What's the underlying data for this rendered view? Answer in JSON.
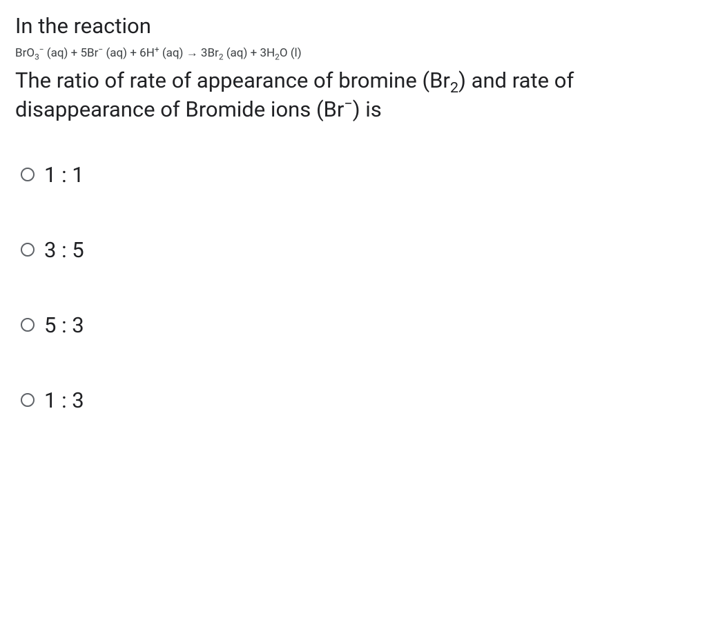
{
  "question": {
    "intro": "In the reaction",
    "equation_parts": {
      "p1": "BrO",
      "p2": "3",
      "p3": "−",
      "p4": " (aq) + 5Br",
      "p5": "−",
      "p6": " (aq) + 6H",
      "p7": "+",
      "p8": " (aq) → 3Br",
      "p9": "2",
      "p10": " (aq) + 3H",
      "p11": "2",
      "p12": "O (l)"
    },
    "body_parts": {
      "b1": "The ratio of rate of appearance of bromine (Br",
      "b2": "2",
      "b3": ") and rate of disappearance of Bromide ions (Br",
      "b4": "−",
      "b5": ") is"
    }
  },
  "options": [
    {
      "label": "1 : 1"
    },
    {
      "label": "3 : 5"
    },
    {
      "label": "5 : 3"
    },
    {
      "label": "1 : 3"
    }
  ],
  "styling": {
    "background_color": "#ffffff",
    "text_color": "#202124",
    "equation_color": "#3c4043",
    "radio_border_color": "#5f6368",
    "question_fontsize": 31,
    "equation_fontsize": 17,
    "option_fontsize": 31,
    "option_gap": 72,
    "radio_size": 20
  }
}
